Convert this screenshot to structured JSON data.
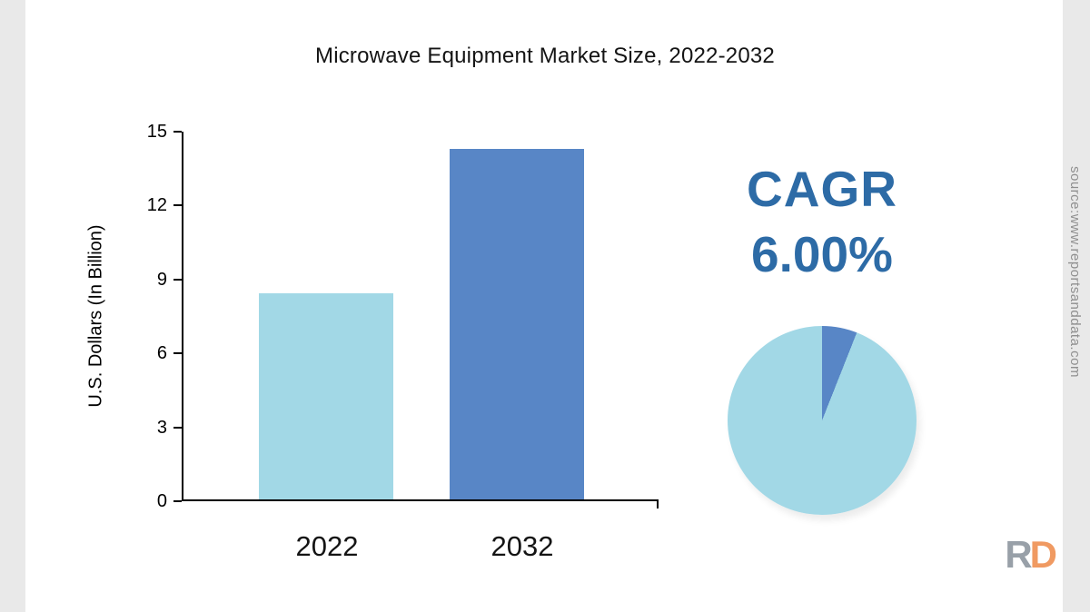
{
  "title": "Microwave Equipment Market Size, 2022-2032",
  "cagr": {
    "label": "CAGR",
    "value": "6.00%",
    "color": "#2d6ba6"
  },
  "chart_data": [
    {
      "type": "bar",
      "title": "Microwave Equipment Market Size, 2022-2032",
      "categories": [
        "2022",
        "2032"
      ],
      "values": [
        8.4,
        14.3
      ],
      "xlabel": "",
      "ylabel": "U.S. Dollars (In Billion)",
      "ylim": [
        0,
        15
      ],
      "yticks": [
        0,
        3,
        6,
        9,
        12,
        15
      ],
      "bar_colors": [
        "#a2d8e6",
        "#5886c6"
      ],
      "grid": false,
      "legend": "none"
    },
    {
      "type": "pie",
      "slices": [
        {
          "name": "cagr-slice",
          "value": 6,
          "color": "#5886c6"
        },
        {
          "name": "remainder-slice",
          "value": 94,
          "color": "#a2d8e6"
        }
      ],
      "start_angle_deg": 0,
      "direction": "clockwise"
    }
  ],
  "page": {
    "source_credit": "source:www.reportsanddata.com",
    "logo_r": "R",
    "logo_d": "D"
  }
}
